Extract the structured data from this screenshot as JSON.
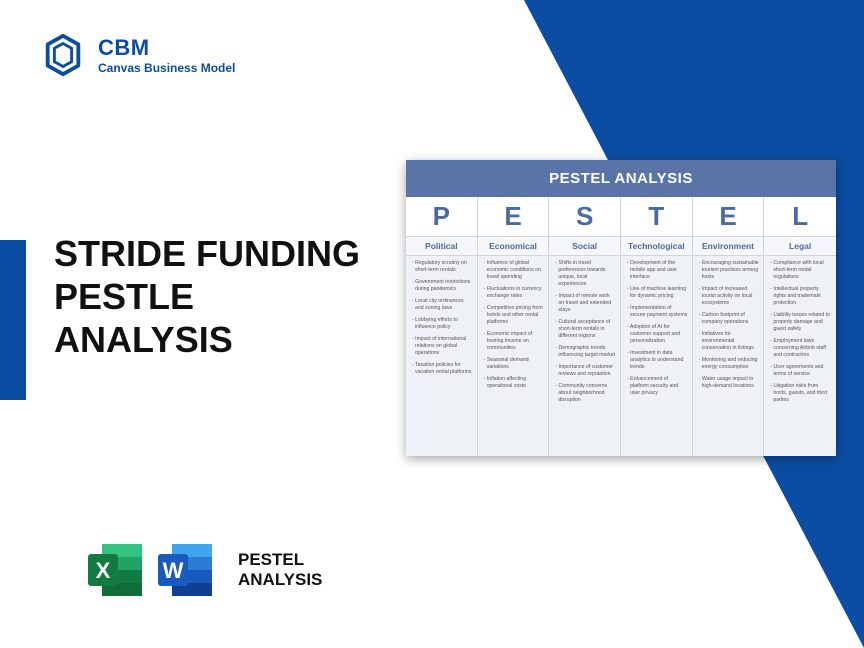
{
  "brand": {
    "name": "CBM",
    "tagline": "Canvas Business Model",
    "color": "#0b4da2"
  },
  "title": {
    "line1": "STRIDE FUNDING",
    "line2": "PESTLE",
    "line3": "ANALYSIS"
  },
  "footer": {
    "label_line1": "PESTEL",
    "label_line2": "ANALYSIS"
  },
  "infographic": {
    "header": "PESTEL ANALYSIS",
    "header_bg": "#5a74a8",
    "letter_color": "#4a6aa5",
    "columns": [
      {
        "letter": "P",
        "name": "Political",
        "items": [
          "Regulatory scrutiny on short-term rentals",
          "Government restrictions during pandemics",
          "Local city ordinances and zoning laws",
          "Lobbying efforts to influence policy",
          "Impact of international relations on global operations",
          "Taxation policies for vacation rental platforms"
        ]
      },
      {
        "letter": "E",
        "name": "Economical",
        "items": [
          "Influence of global economic conditions on travel spending",
          "Fluctuations in currency exchange rates",
          "Competitive pricing from hotels and other rental platforms",
          "Economic impact of hosting income on communities",
          "Seasonal demand variations",
          "Inflation affecting operational costs"
        ]
      },
      {
        "letter": "S",
        "name": "Social",
        "items": [
          "Shifts in travel preferences towards unique, local experiences",
          "Impact of remote work on travel and extended stays",
          "Cultural acceptance of short-term rentals in different regions",
          "Demographic trends influencing target market",
          "Importance of customer reviews and reputation",
          "Community concerns about neighborhood disruption"
        ]
      },
      {
        "letter": "T",
        "name": "Technological",
        "items": [
          "Development of the mobile app and user interface",
          "Use of machine learning for dynamic pricing",
          "Implementation of secure payment systems",
          "Adoption of AI for customer support and personalization",
          "Investment in data analytics to understand trends",
          "Enhancement of platform security and user privacy"
        ]
      },
      {
        "letter": "E",
        "name": "Environment",
        "items": [
          "Encouraging sustainable tourism practices among hosts",
          "Impact of increased tourist activity on local ecosystems",
          "Carbon footprint of company operations",
          "Initiatives for environmental conservation in listings",
          "Monitoring and reducing energy consumption",
          "Water usage impact in high-demand locations"
        ]
      },
      {
        "letter": "L",
        "name": "Legal",
        "items": [
          "Compliance with local short-term rental regulations",
          "Intellectual property rights and trademark protection",
          "Liability issues related to property damage and guest safety",
          "Employment laws concerning Airbnb staff and contractors",
          "User agreements and terms of service",
          "Litigation risks from hosts, guests, and third parties"
        ]
      }
    ]
  },
  "icons": {
    "excel": {
      "bg1": "#21a366",
      "bg2": "#107c41",
      "letter": "X"
    },
    "word": {
      "bg1": "#2b7cd3",
      "bg2": "#185abd",
      "letter": "W"
    }
  }
}
